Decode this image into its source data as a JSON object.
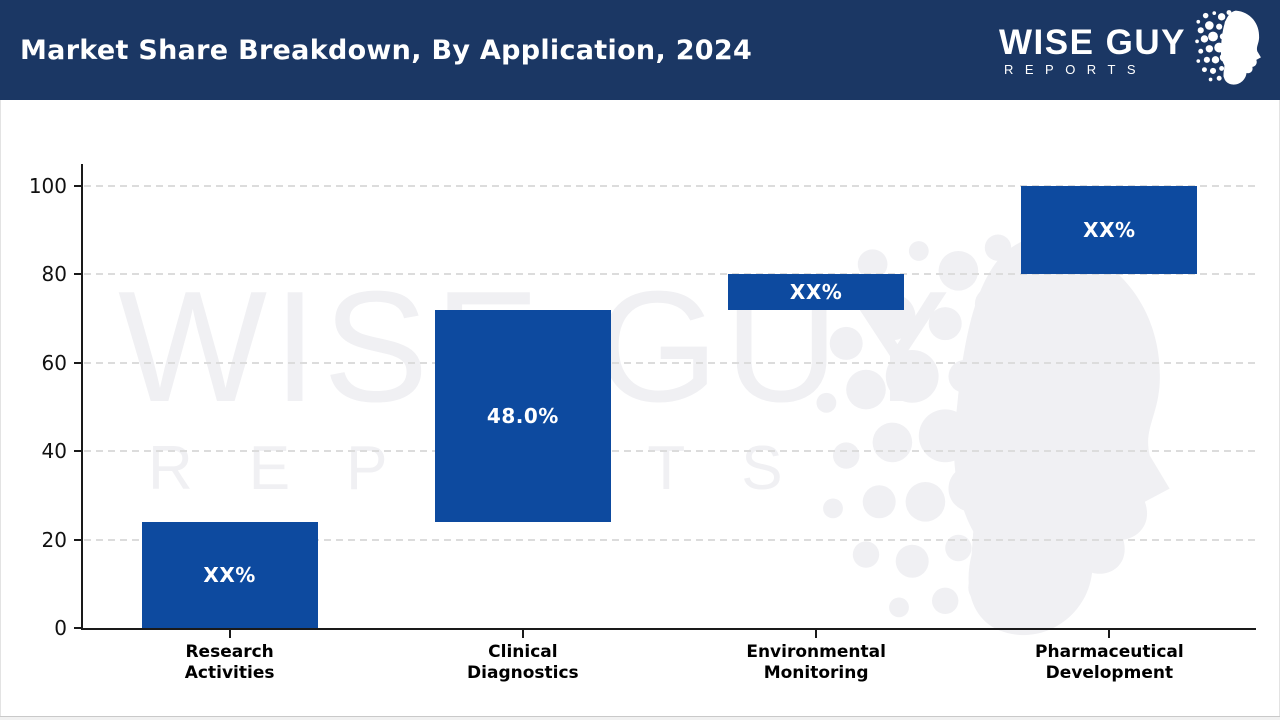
{
  "header": {
    "title": "Market Share Breakdown, By Application, 2024",
    "background_color": "#1b3764",
    "logo": {
      "wordmark": "WISE GUY",
      "subtitle": "REPORTS"
    }
  },
  "watermark": {
    "wordmark": "WISE GUY",
    "subtitle": "REPORTS"
  },
  "chart_data": {
    "type": "bar",
    "subtype": "floating-waterfall",
    "title": "Market Share Breakdown, By Application, 2024",
    "categories": [
      "Research Activities",
      "Clinical Diagnostics",
      "Environmental Monitoring",
      "Pharmaceutical Development"
    ],
    "segments": [
      {
        "category": "Research Activities",
        "start": 0,
        "end": 24,
        "label": "XX%"
      },
      {
        "category": "Clinical Diagnostics",
        "start": 24,
        "end": 72,
        "label": "48.0%"
      },
      {
        "category": "Environmental Monitoring",
        "start": 72,
        "end": 80,
        "label": "XX%"
      },
      {
        "category": "Pharmaceutical Development",
        "start": 80,
        "end": 100,
        "label": "XX%"
      }
    ],
    "xlabel": "",
    "ylabel": "",
    "ylim": [
      0,
      100
    ],
    "yticks": [
      0,
      20,
      40,
      60,
      80,
      100
    ],
    "grid": "horizontal dashed",
    "legend": "none",
    "bar_color": "#0d4a9f",
    "bar_label_color": "#ffffff",
    "axis_color": "#1a1a1a"
  }
}
